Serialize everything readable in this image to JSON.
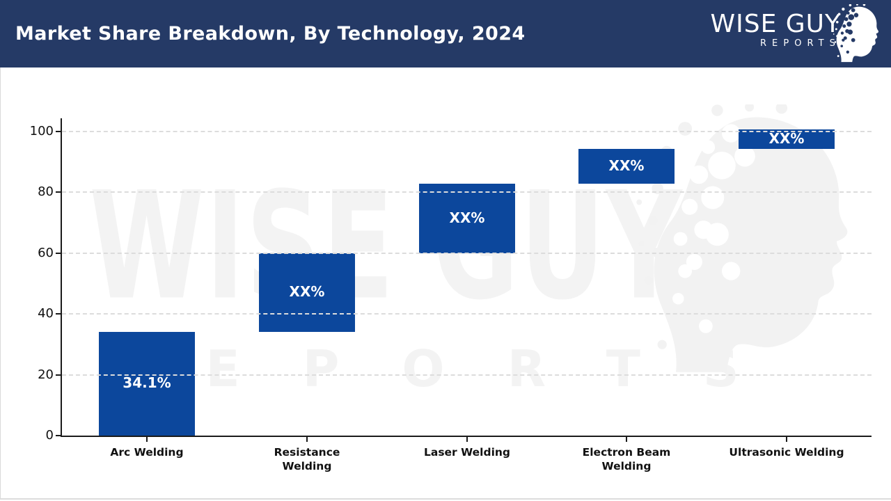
{
  "header": {
    "title": "Market Share Breakdown, By Technology, 2024",
    "logo": {
      "wordmark": "WISE GUY",
      "subtext": "REPORTS"
    },
    "bg_color": "#253A66"
  },
  "watermark": {
    "wordmark": "WISE GUY",
    "subtext": "REPORTS"
  },
  "chart_data": {
    "type": "bar",
    "subtype": "waterfall",
    "title": "Market Share Breakdown, By Technology, 2024",
    "unit": "percent market share",
    "categories": [
      "Arc Welding",
      "Resistance Welding",
      "Laser Welding",
      "Electron Beam Welding",
      "Ultrasonic Welding"
    ],
    "segments": [
      {
        "category": "Arc Welding",
        "start": 0,
        "end": 34.1,
        "label": "34.1%"
      },
      {
        "category": "Resistance Welding",
        "start": 34.1,
        "end": 60.0,
        "label": "XX%"
      },
      {
        "category": "Laser Welding",
        "start": 60.0,
        "end": 82.8,
        "label": "XX%"
      },
      {
        "category": "Electron Beam Welding",
        "start": 82.8,
        "end": 94.2,
        "label": "XX%"
      },
      {
        "category": "Ultrasonic Welding",
        "start": 94.2,
        "end": 100.6,
        "label": "XX%"
      }
    ],
    "bar_color": "#0C479C",
    "yticks": [
      0,
      20,
      40,
      60,
      80,
      100
    ],
    "ylim": [
      0,
      105
    ],
    "grid": {
      "axis": "y",
      "style": "dashed",
      "color": "#DCDCDC"
    },
    "legend": null
  }
}
